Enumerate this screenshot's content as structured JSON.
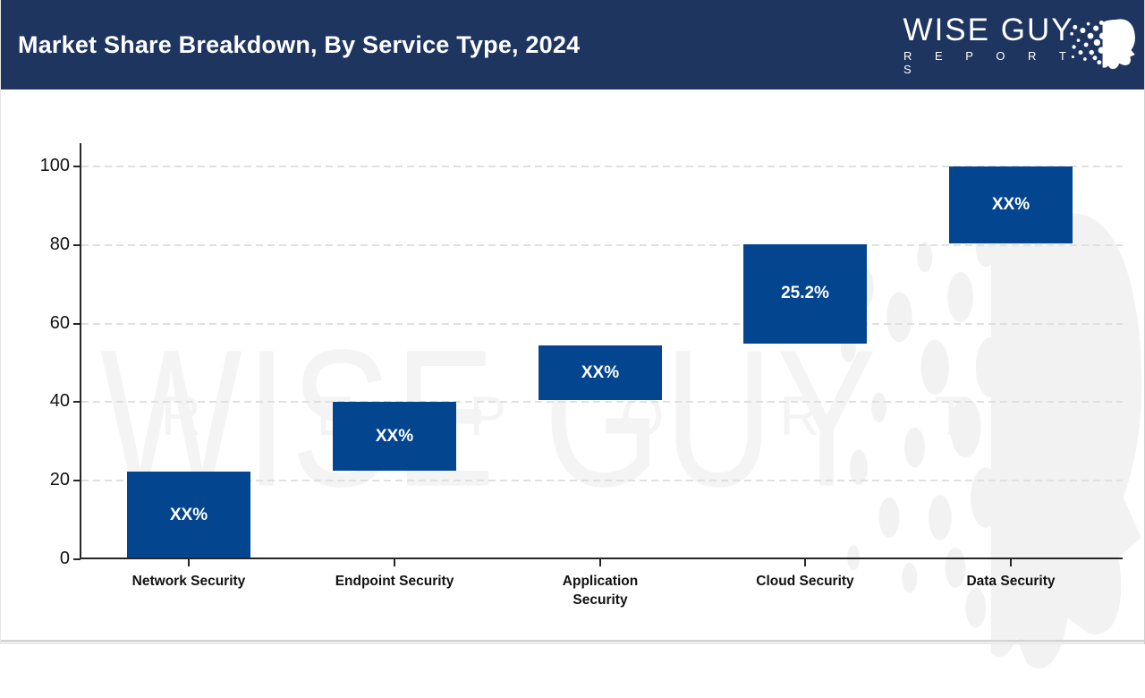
{
  "header": {
    "title": "Market Share Breakdown, By Service Type, 2024",
    "bg_color": "#1e3560",
    "logo": {
      "name": "WISE GUY",
      "sub": "R E P O R T S"
    }
  },
  "watermark": {
    "line1": "WISE GUY",
    "line2": "R E P O R T S"
  },
  "chart_data": {
    "type": "bar",
    "subtype": "waterfall-floating-bars",
    "title": "Market Share Breakdown, By Service Type, 2024",
    "categories": [
      "Network Security",
      "Endpoint Security",
      "Application Security",
      "Cloud Security",
      "Data Security"
    ],
    "category_label_lines": [
      [
        "Network Security"
      ],
      [
        "Endpoint Security"
      ],
      [
        "Application",
        "Security"
      ],
      [
        "Cloud Security"
      ],
      [
        "Data Security"
      ]
    ],
    "segments": [
      {
        "category": "Network Security",
        "start": 0,
        "end": 22.4,
        "label": "XX%"
      },
      {
        "category": "Endpoint Security",
        "start": 22.5,
        "end": 40.1,
        "label": "XX%"
      },
      {
        "category": "Application Security",
        "start": 40.5,
        "end": 54.4,
        "label": "XX%"
      },
      {
        "category": "Cloud Security",
        "start": 55.0,
        "end": 80.2,
        "label": "25.2%"
      },
      {
        "category": "Data Security",
        "start": 80.5,
        "end": 100,
        "label": "XX%"
      }
    ],
    "xlabel": "",
    "ylabel": "",
    "ylim": [
      0,
      100
    ],
    "yticks": [
      0,
      20,
      40,
      60,
      80,
      100
    ],
    "grid": "dashed horizontal gridlines",
    "legend": "none",
    "colors": {
      "bar": "#04458f",
      "bar_label": "#ffffff",
      "axis": "#262626",
      "gridline": "#e0e0e0",
      "tick_text": "#111111"
    }
  }
}
